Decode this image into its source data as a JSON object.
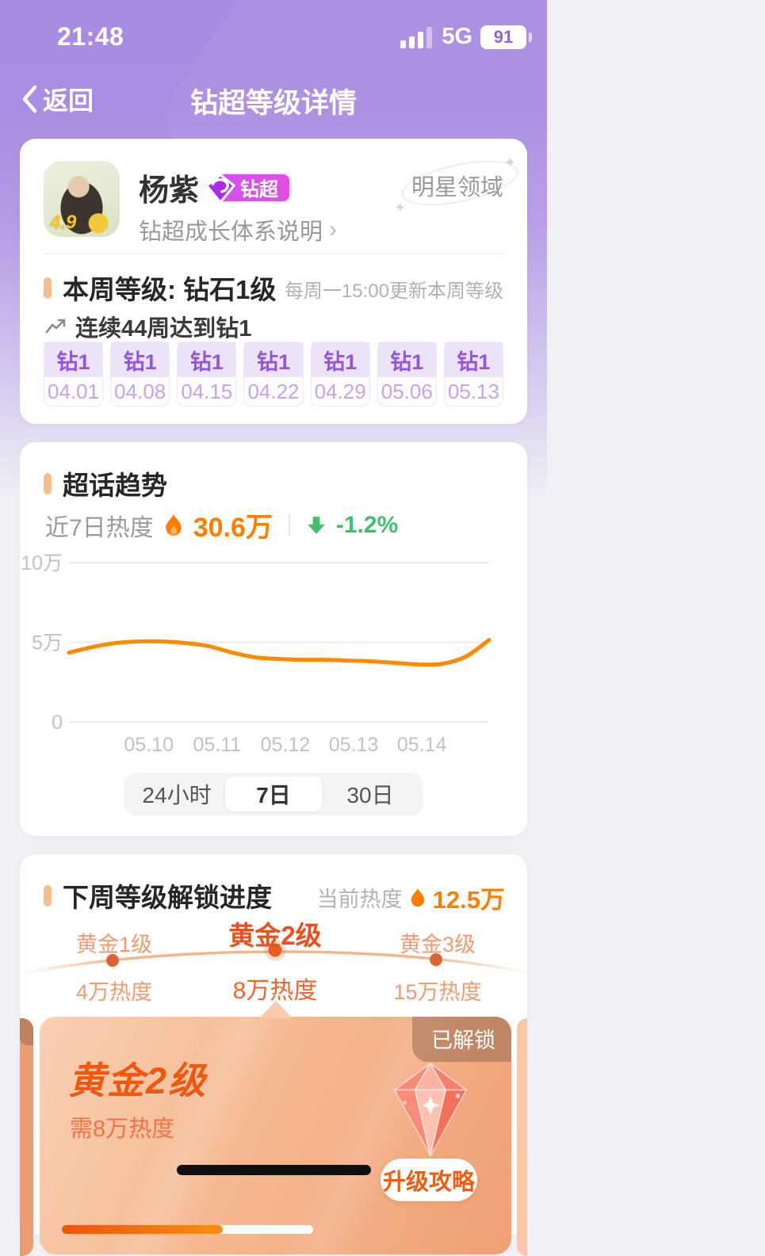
{
  "status_bar": {
    "time": "21:48",
    "network": "5G",
    "battery_percent": "91"
  },
  "nav": {
    "back": "返回",
    "title": "钻超等级详情"
  },
  "profile": {
    "name": "杨紫",
    "badge": "钻超",
    "domain": "明星领域",
    "growth_link": "钻超成长体系说明",
    "link_arrow": "›",
    "avatar_score": "4.9"
  },
  "week": {
    "heading": "本周等级: 钻石1级",
    "update_note": "每周一15:00更新本周等级",
    "streak": "连续44周达到钻1",
    "history": [
      {
        "level": "钻1",
        "date": "04.01"
      },
      {
        "level": "钻1",
        "date": "04.08"
      },
      {
        "level": "钻1",
        "date": "04.15"
      },
      {
        "level": "钻1",
        "date": "04.22"
      },
      {
        "level": "钻1",
        "date": "04.29"
      },
      {
        "level": "钻1",
        "date": "05.06"
      },
      {
        "level": "钻1",
        "date": "05.13"
      }
    ]
  },
  "trend": {
    "heading": "超话趋势",
    "range_label": "近7日热度",
    "heat_value": "30.6万",
    "change_value": "-1.2%",
    "tabs": [
      "24小时",
      "7日",
      "30日"
    ],
    "active_tab": "7日"
  },
  "chart_data": {
    "type": "line",
    "title": "超话趋势",
    "x_labels": [
      "05.10",
      "05.11",
      "05.12",
      "05.13",
      "05.14"
    ],
    "y_ticks": [
      {
        "value": 0,
        "label": "0"
      },
      {
        "value": 50000,
        "label": "5万"
      },
      {
        "value": 100000,
        "label": "10万"
      }
    ],
    "ylim": [
      0,
      100000
    ],
    "grid": "horizontal",
    "legend": "none",
    "series": [
      {
        "name": "热度",
        "color": "#ff8a00",
        "values_wan": [
          4.35,
          4.7,
          4.95,
          5.05,
          5.05,
          4.95,
          4.75,
          4.35,
          4.05,
          3.95,
          3.9,
          3.9,
          3.85,
          3.8,
          3.7,
          3.6,
          3.65,
          4.1,
          5.15
        ]
      }
    ]
  },
  "unlock": {
    "heading": "下周等级解锁进度",
    "current_label": "当前热度",
    "current_heat": "12.5万",
    "milestones": [
      {
        "name": "黄金1级",
        "heat": "4万热度",
        "current": false
      },
      {
        "name": "黄金2级",
        "heat": "8万热度",
        "current": true
      },
      {
        "name": "黄金3级",
        "heat": "15万热度",
        "current": false
      }
    ],
    "card": {
      "status": "已解锁",
      "title": "黄金2级",
      "requirement": "需8万热度",
      "cta": "升级攻略",
      "progress_percent": 64
    }
  },
  "colors": {
    "accent_orange": "#ff7d00",
    "deep_orange": "#ee5a12",
    "green": "#3fbf6f",
    "purple": "#a88ce2",
    "chip_purple": "#9157d8",
    "line_orange": "#ff8a00"
  }
}
